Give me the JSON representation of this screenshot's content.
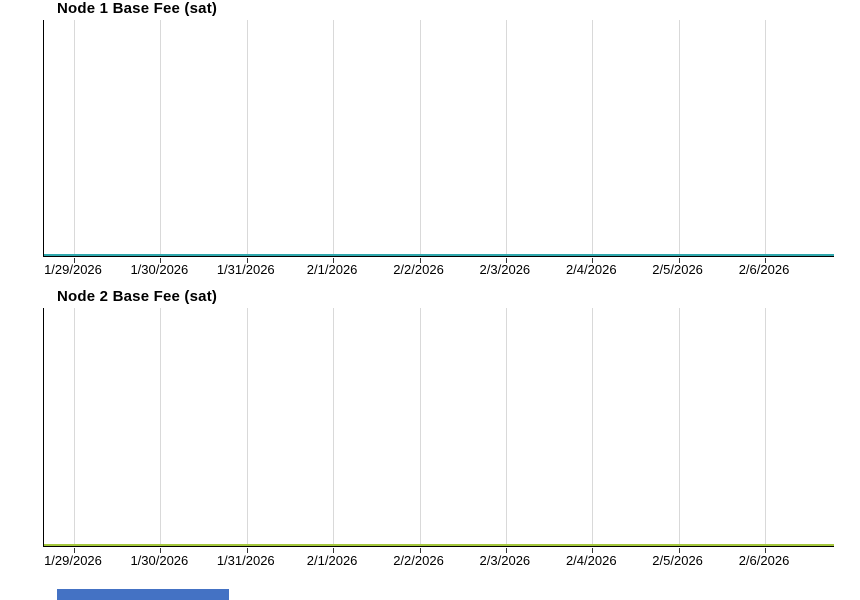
{
  "chart_data": [
    {
      "type": "line",
      "title": "Node 1 Base Fee (sat)",
      "x": [
        "1/29/2026",
        "1/30/2026",
        "1/31/2026",
        "2/1/2026",
        "2/2/2026",
        "2/3/2026",
        "2/4/2026",
        "2/5/2026",
        "2/6/2026"
      ],
      "series": [
        {
          "name": "Node 1 Base Fee",
          "values": [
            0,
            0,
            0,
            0,
            0,
            0,
            0,
            0,
            0
          ],
          "color": "#2FA8AD"
        }
      ],
      "xlabel": "",
      "ylabel": "",
      "y_tick_labels": "none",
      "grid": "vertical",
      "legend": "none"
    },
    {
      "type": "line",
      "title": "Node 2 Base Fee (sat)",
      "x": [
        "1/29/2026",
        "1/30/2026",
        "1/31/2026",
        "2/1/2026",
        "2/2/2026",
        "2/3/2026",
        "2/4/2026",
        "2/5/2026",
        "2/6/2026"
      ],
      "series": [
        {
          "name": "Node 2 Base Fee",
          "values": [
            0,
            0,
            0,
            0,
            0,
            0,
            0,
            0,
            0
          ],
          "color": "#A4C73C"
        }
      ],
      "xlabel": "",
      "ylabel": "",
      "y_tick_labels": "none",
      "grid": "vertical",
      "legend": "none"
    }
  ],
  "colors": {
    "background": "#ffffff",
    "axis": "#000000",
    "gridline": "#D9D9D9",
    "tick": "#333333",
    "title_text": "#000000",
    "label_text": "#000000",
    "node1_line": "#2FA8AD",
    "node2_line": "#A4C73C",
    "selection_bar": "#4472C4"
  }
}
